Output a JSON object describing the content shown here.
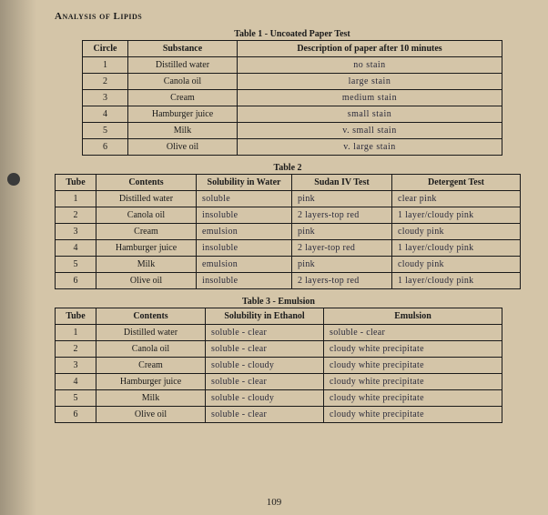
{
  "pageTitle": "Analysis of Lipids",
  "pageNumber": "109",
  "table1": {
    "title": "Table 1 - Uncoated Paper Test",
    "headers": {
      "circle": "Circle",
      "substance": "Substance",
      "desc": "Description of paper after 10 minutes"
    },
    "rows": [
      {
        "n": "1",
        "sub": "Distilled water",
        "desc": "no stain"
      },
      {
        "n": "2",
        "sub": "Canola oil",
        "desc": "large stain"
      },
      {
        "n": "3",
        "sub": "Cream",
        "desc": "medium stain"
      },
      {
        "n": "4",
        "sub": "Hamburger juice",
        "desc": "small stain"
      },
      {
        "n": "5",
        "sub": "Milk",
        "desc": "v. small stain"
      },
      {
        "n": "6",
        "sub": "Olive oil",
        "desc": "v. large stain"
      }
    ]
  },
  "table2": {
    "title": "Table 2",
    "headers": {
      "tube": "Tube",
      "contents": "Contents",
      "sol": "Solubility in Water",
      "sudan": "Sudan IV Test",
      "det": "Detergent Test"
    },
    "rows": [
      {
        "n": "1",
        "sub": "Distilled water",
        "sol": "soluble",
        "sudan": "pink",
        "det": "clear pink"
      },
      {
        "n": "2",
        "sub": "Canola oil",
        "sol": "insoluble",
        "sudan": "2 layers-top red",
        "det": "1 layer/cloudy pink"
      },
      {
        "n": "3",
        "sub": "Cream",
        "sol": "emulsion",
        "sudan": "pink",
        "det": "cloudy pink"
      },
      {
        "n": "4",
        "sub": "Hamburger juice",
        "sol": "insoluble",
        "sudan": "2 layer-top red",
        "det": "1 layer/cloudy pink"
      },
      {
        "n": "5",
        "sub": "Milk",
        "sol": "emulsion",
        "sudan": "pink",
        "det": "cloudy pink"
      },
      {
        "n": "6",
        "sub": "Olive oil",
        "sol": "insoluble",
        "sudan": "2 layers-top red",
        "det": "1 layer/cloudy pink"
      }
    ]
  },
  "table3": {
    "title": "Table 3 - Emulsion",
    "headers": {
      "tube": "Tube",
      "contents": "Contents",
      "sol": "Solubility in Ethanol",
      "em": "Emulsion"
    },
    "rows": [
      {
        "n": "1",
        "sub": "Distilled water",
        "sol": "soluble - clear",
        "em": "soluble - clear"
      },
      {
        "n": "2",
        "sub": "Canola oil",
        "sol": "soluble - clear",
        "em": "cloudy white precipitate"
      },
      {
        "n": "3",
        "sub": "Cream",
        "sol": "soluble - cloudy",
        "em": "cloudy white precipitate"
      },
      {
        "n": "4",
        "sub": "Hamburger juice",
        "sol": "soluble - clear",
        "em": "cloudy white precipitate"
      },
      {
        "n": "5",
        "sub": "Milk",
        "sol": "soluble - cloudy",
        "em": "cloudy white precipitate"
      },
      {
        "n": "6",
        "sub": "Olive oil",
        "sol": "soluble - clear",
        "em": "cloudy white precipitate"
      }
    ]
  }
}
